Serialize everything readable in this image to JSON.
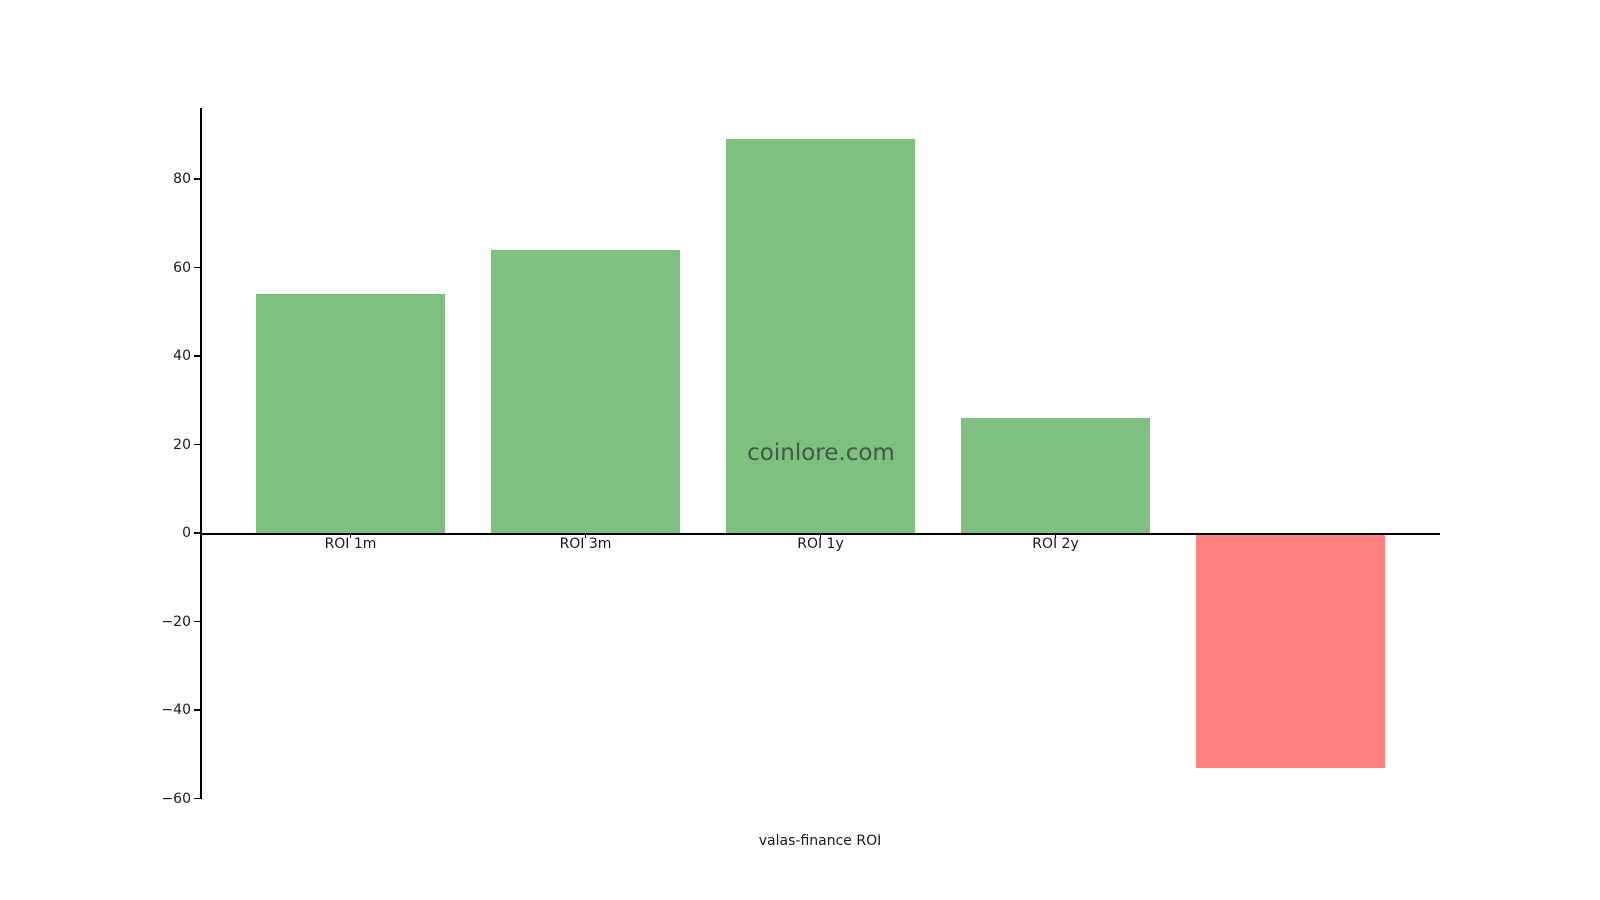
{
  "page": {
    "background": "#ffffff"
  },
  "chart_data": {
    "type": "bar",
    "title": "",
    "xlabel": "valas-finance ROI",
    "ylabel": "",
    "categories": [
      "ROI 1m",
      "ROI 3m",
      "ROI 1y",
      "ROI 2y",
      ""
    ],
    "values": [
      54,
      64,
      89,
      26,
      -53
    ],
    "positive_color": "#7dc07f",
    "negative_color": "#ff8080",
    "y_ticks": [
      80,
      60,
      40,
      20,
      0,
      -20,
      -40,
      -60
    ],
    "y_tick_labels": [
      "80",
      "60",
      "40",
      "20",
      "0",
      "−20",
      "−40",
      "−60"
    ],
    "ylim": [
      -60.1,
      96.1
    ],
    "grid": false,
    "legend": "none",
    "annotations": [
      "coinlore.com"
    ]
  },
  "watermark": {
    "text": "coinlore.com",
    "color": "#3d5c44"
  },
  "style": {
    "axis_color": "#000000",
    "tick_label_color": "#1a1a1a"
  }
}
